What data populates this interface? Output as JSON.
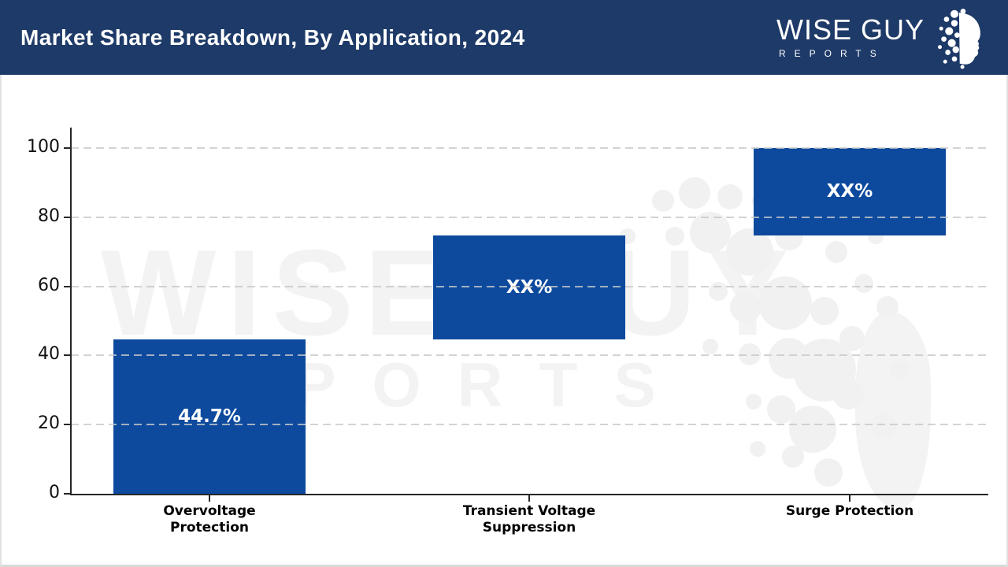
{
  "header": {
    "title": "Market Share Breakdown, By Application, 2024",
    "logo": {
      "line1": "WISE GUY",
      "line2": "REPORTS"
    }
  },
  "watermark": {
    "line1": "WISE GUY",
    "line2": "REPORTS"
  },
  "chart_data": {
    "type": "bar",
    "subtype": "waterfall-segment-bars",
    "title": "Market Share Breakdown, By Application, 2024",
    "categories": [
      "Overvoltage Protection",
      "Transient Voltage Suppression",
      "Surge Protection"
    ],
    "categories_lines": [
      [
        "Overvoltage",
        "Protection"
      ],
      [
        "Transient Voltage",
        "Suppression"
      ],
      [
        "Surge Protection"
      ]
    ],
    "segments": [
      {
        "category": "Overvoltage Protection",
        "start": 0,
        "end": 44.7,
        "label": "44.7%"
      },
      {
        "category": "Transient Voltage Suppression",
        "start": 44.7,
        "end": 74.8,
        "label": "XX%"
      },
      {
        "category": "Surge Protection",
        "start": 74.8,
        "end": 100,
        "label": "XX%"
      }
    ],
    "ylim": [
      0,
      100
    ],
    "yticks": [
      0,
      20,
      40,
      60,
      80,
      100
    ],
    "xlabel": "",
    "ylabel": "",
    "bar_color": "#0d4a9e",
    "grid": {
      "show": true,
      "style": "dashed",
      "axis": "y"
    },
    "legend": null
  }
}
